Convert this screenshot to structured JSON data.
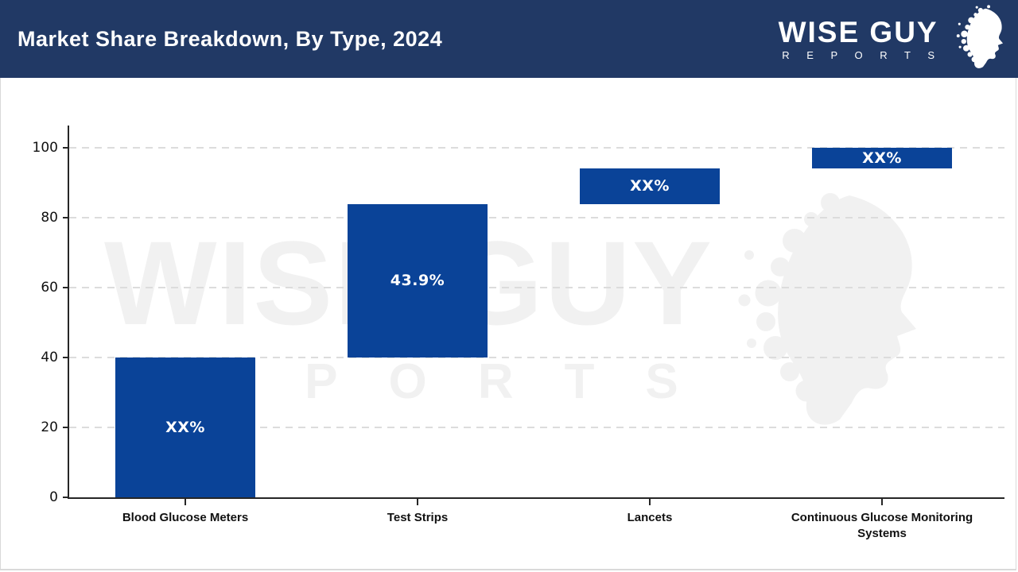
{
  "header": {
    "title": "Market Share Breakdown, By Type, 2024",
    "bg_color": "#213965",
    "logo": {
      "line1": "WISE GUY",
      "line2": "R E P O R T S"
    }
  },
  "watermark": {
    "line1": "WISE GUY",
    "line2": "REPORTS"
  },
  "chart_data": {
    "type": "bar",
    "subtype": "waterfall",
    "title": "Market Share Breakdown, By Type, 2024",
    "categories": [
      "Blood Glucose Meters",
      "Test Strips",
      "Lancets",
      "Continuous Glucose Monitoring Systems"
    ],
    "bars": [
      {
        "category": "Blood Glucose Meters",
        "start": 0,
        "end": 40,
        "label": "XX%"
      },
      {
        "category": "Test Strips",
        "start": 40,
        "end": 83.9,
        "label": "43.9%"
      },
      {
        "category": "Lancets",
        "start": 83.9,
        "end": 94.1,
        "label": "XX%"
      },
      {
        "category": "Continuous Glucose Monitoring Systems",
        "start": 94.1,
        "end": 100,
        "label": "XX%"
      }
    ],
    "ylim": [
      0,
      100
    ],
    "yticks": [
      0,
      20,
      40,
      60,
      80,
      100
    ],
    "xlabel": "",
    "ylabel": "",
    "grid": "horizontal-dashed",
    "legend": "none",
    "bar_color": "#0a4398",
    "grid_color": "#dcdcdc",
    "label_color": "#ffffff"
  }
}
